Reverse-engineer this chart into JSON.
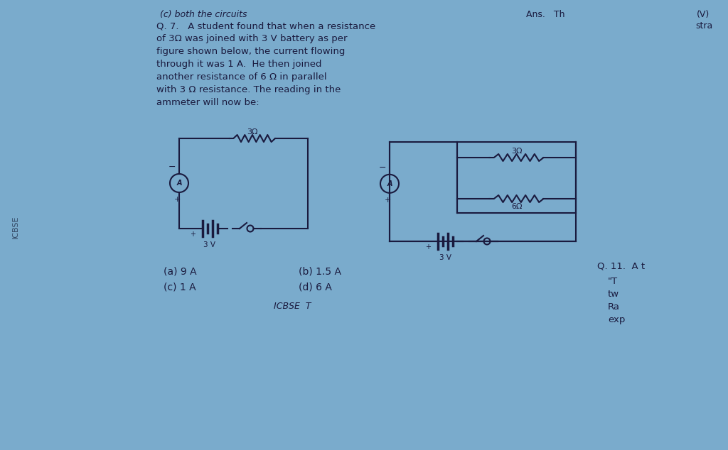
{
  "bg_color": "#7aabcc",
  "dark_color": "#1a1a3e",
  "header_left": "(c) both the circuits",
  "header_right": "Ans.   Th",
  "header_right2": "(V)",
  "header_right3": "stra",
  "side_text": "ICBSE",
  "question_lines": [
    "Q. 7.   A student found that when a resistance",
    "of 3Ω was joined with 3 V battery as per",
    "figure shown below, the current flowing",
    "through it was 1 A.  He then joined",
    "another resistance of 6 Ω in parallel",
    "with 3 Ω resistance. The reading in the",
    "ammeter will now be:"
  ],
  "options_a": "(a) 9 A",
  "options_b": "(b) 1.5 A",
  "options_c": "(c) 1 A",
  "options_d": "(d) 6 A",
  "bottom_text": "ICBSE  T",
  "q11_text": "Q. 11.  A t",
  "q11_lines": [
    "\"T",
    "tw",
    "Ra",
    "exp"
  ],
  "circuit1_label": "3Ω",
  "circuit1_battery": "3 V",
  "circuit2_label1": "3Ω",
  "circuit2_label2": "6Ω",
  "circuit2_battery": "3 V"
}
